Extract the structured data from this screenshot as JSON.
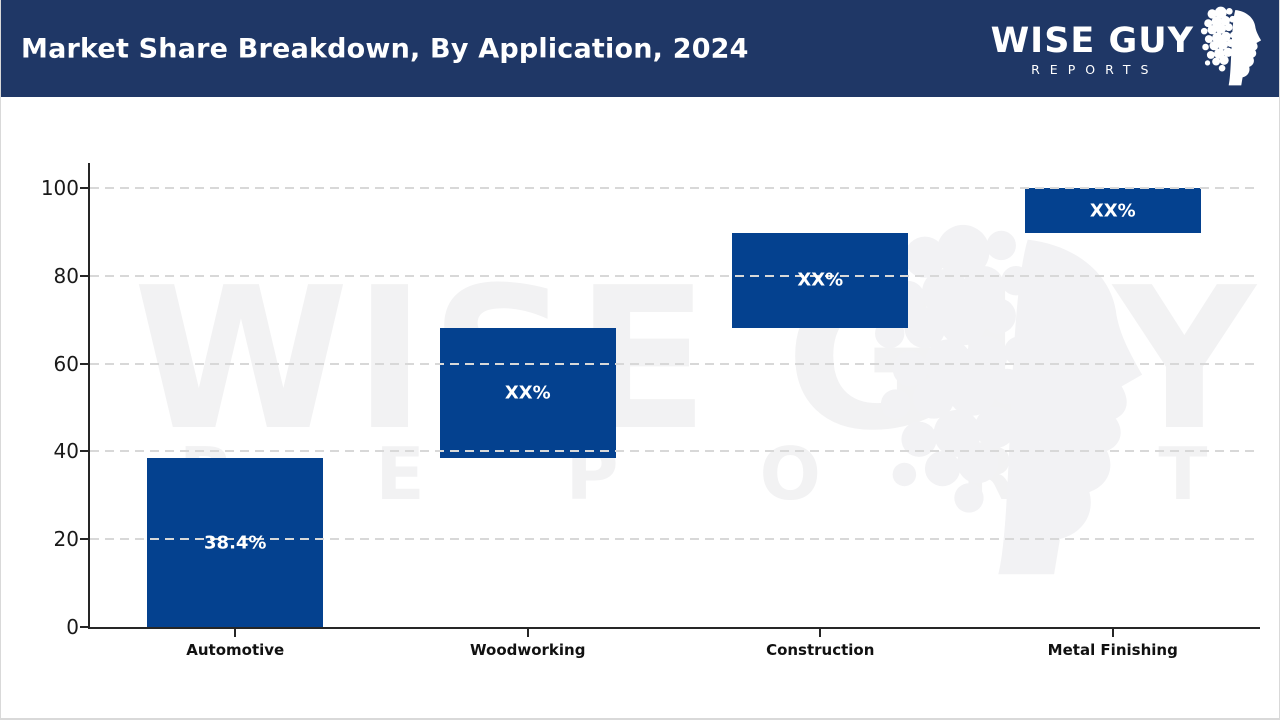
{
  "header": {
    "title": "Market Share Breakdown, By Application, 2024",
    "logo": {
      "brand": "WISE GUY",
      "sub": "REPORTS"
    }
  },
  "watermark": {
    "brand": "WISE GUY",
    "sub": "R E P O R T S"
  },
  "chart_data": {
    "type": "bar",
    "subtype": "waterfall",
    "title": "Market Share Breakdown, By Application, 2024",
    "categories": [
      "Automotive",
      "Woodworking",
      "Construction",
      "Metal Finishing"
    ],
    "series": [
      {
        "name": "Market share (%)",
        "segments": [
          {
            "start": 0,
            "end": 38.4
          },
          {
            "start": 38.4,
            "end": 68.2
          },
          {
            "start": 68.2,
            "end": 89.7
          },
          {
            "start": 89.7,
            "end": 100
          }
        ]
      }
    ],
    "bar_labels": [
      "38.4%",
      "XX%",
      "XX%",
      "XX%"
    ],
    "xlabel": "",
    "ylabel": "",
    "ylim": [
      0,
      100
    ],
    "yticks": [
      0,
      20,
      40,
      60,
      80,
      100
    ],
    "grid": "horizontal-dashed",
    "legend": "none",
    "colors": {
      "bar": "#04418f",
      "bar_label": "#ffffff",
      "grid": "#d8d8d8",
      "axis": "#262626",
      "header_bg": "#1f3766",
      "watermark": "#f2f2f3"
    }
  }
}
